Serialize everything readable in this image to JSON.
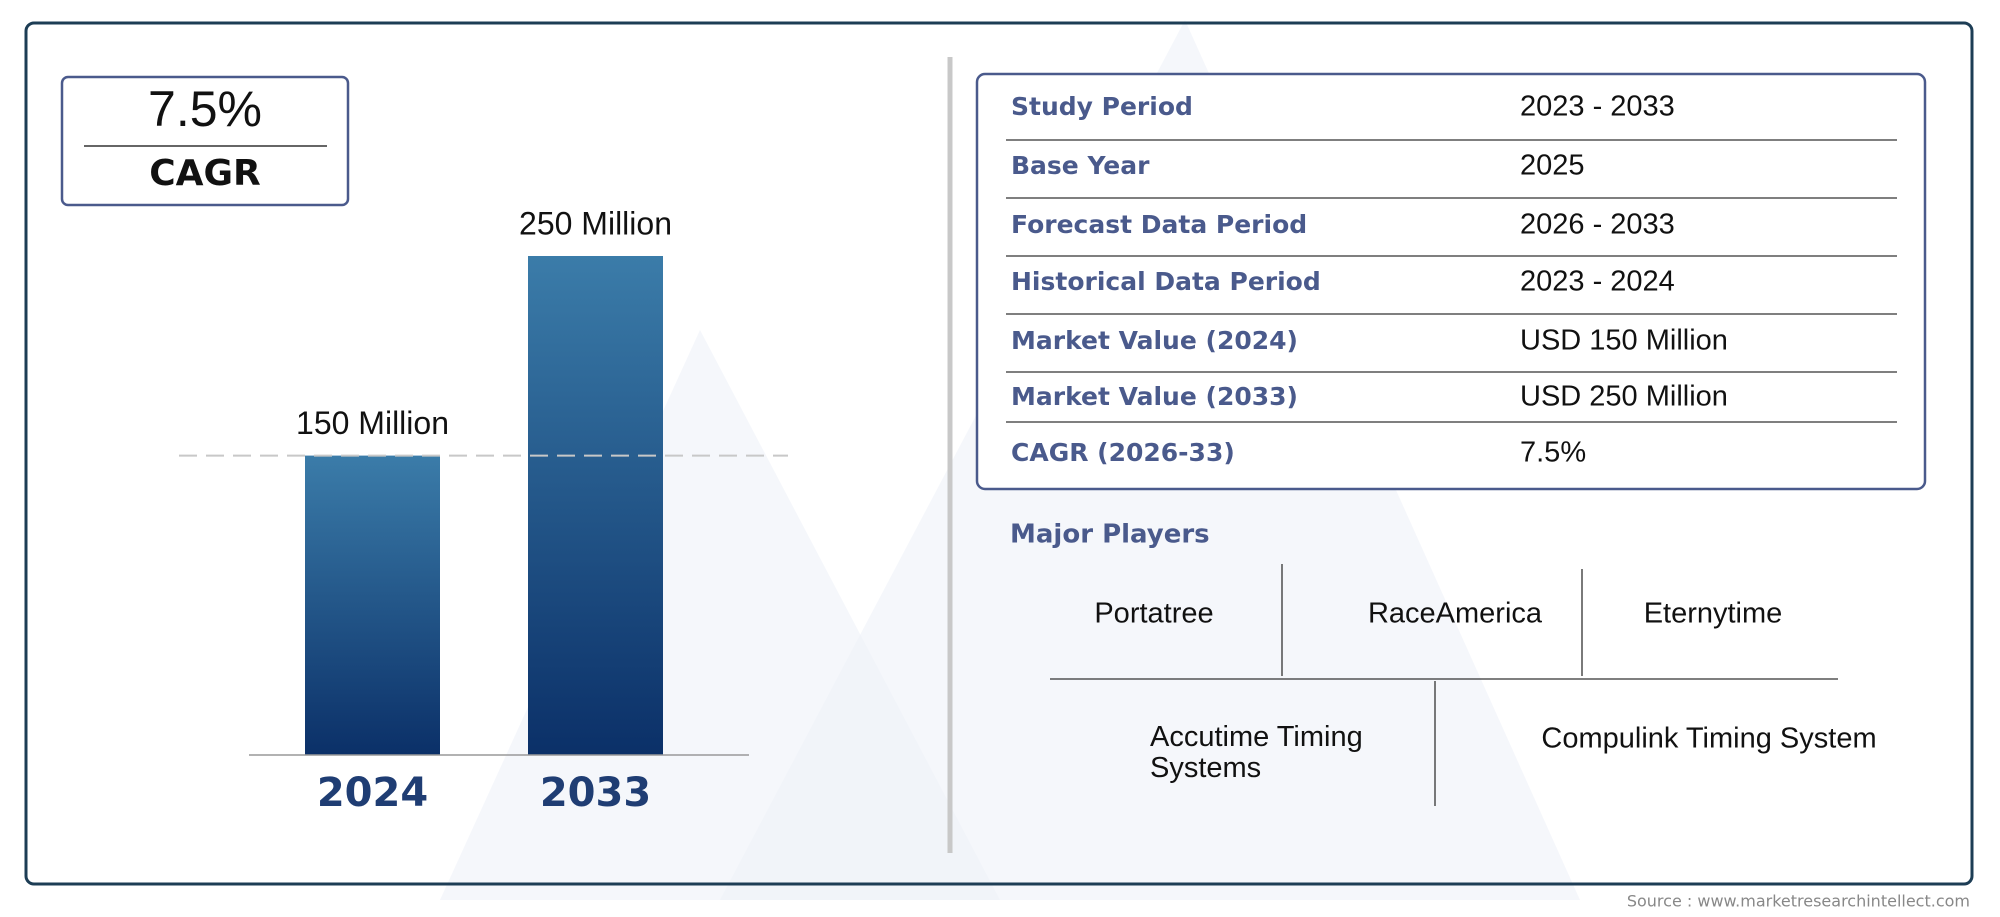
{
  "cagr_box": {
    "value": "7.5%",
    "label": "CAGR"
  },
  "chart_data": {
    "type": "bar",
    "categories": [
      "2024",
      "2033"
    ],
    "values": [
      150,
      250
    ],
    "value_labels": [
      "150 Million",
      "250 Million"
    ],
    "gradient": [
      "#3b7ca9",
      "#0b3068"
    ]
  },
  "table": {
    "rows": [
      [
        "Study Period",
        "2023 - 2033"
      ],
      [
        "Base Year",
        "2025"
      ],
      [
        "Forecast Data Period",
        "2026 - 2033"
      ],
      [
        "Historical Data Period",
        "2023 - 2024"
      ],
      [
        "Market Value (2024)",
        "USD 150 Million"
      ],
      [
        "Market Value (2033)",
        "USD 250 Million"
      ],
      [
        "CAGR (2026-33)",
        "7.5%"
      ]
    ]
  },
  "major_players": {
    "title": "Major Players",
    "players": [
      "Portatree",
      "RaceAmerica",
      "Eternytime",
      "Accutime Timing Systems",
      "Compulink Timing System"
    ]
  },
  "source": "Source : www.marketresearchintellect.com"
}
